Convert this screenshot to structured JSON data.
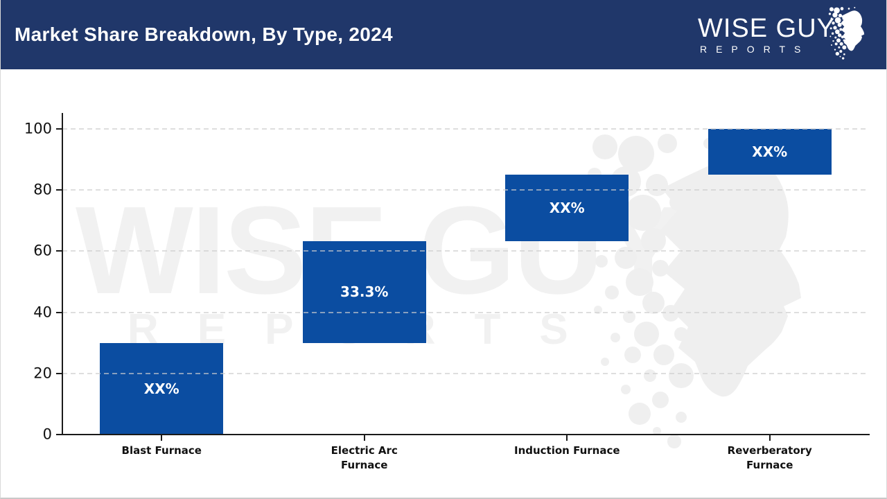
{
  "header": {
    "title": "Market Share Breakdown, By Type, 2024",
    "logo": {
      "line1": "WISE GUY",
      "line2": "REPORTS"
    }
  },
  "watermark": {
    "line1": "WISE GUY",
    "line2": "REPORTS"
  },
  "colors": {
    "header_bg": "#20376a",
    "bar": "#0b4da1",
    "bar_label": "#ffffff",
    "axis": "#1a1a1a",
    "gridline": "#dedede",
    "watermark": "#f1f1f1"
  },
  "chart_data": {
    "type": "bar",
    "subtype": "floating-segment-percentage",
    "title": "Market Share Breakdown, By Type, 2024",
    "categories": [
      "Blast Furnace",
      "Electric Arc Furnace",
      "Induction Furnace",
      "Reverberatory Furnace"
    ],
    "category_label_lines": [
      [
        "Blast Furnace"
      ],
      [
        "Electric Arc",
        "Furnace"
      ],
      [
        "Induction Furnace"
      ],
      [
        "Reverberatory",
        "Furnace"
      ]
    ],
    "segments": [
      {
        "category": "Blast Furnace",
        "start": 0,
        "end": 30,
        "span": 30,
        "label": "XX%"
      },
      {
        "category": "Electric Arc Furnace",
        "start": 30,
        "end": 63.3,
        "span": 33.3,
        "label": "33.3%"
      },
      {
        "category": "Induction Furnace",
        "start": 63.3,
        "end": 85,
        "span": 21.7,
        "label": "XX%"
      },
      {
        "category": "Reverberatory Furnace",
        "start": 85,
        "end": 100,
        "span": 15,
        "label": "XX%"
      }
    ],
    "yticks": [
      0,
      20,
      40,
      60,
      80,
      100
    ],
    "ylim": [
      0,
      105
    ],
    "xlabel": "",
    "ylabel": "",
    "grid": "horizontal-dashed",
    "legend": null,
    "bar_color": "#0b4da1",
    "bar_label_color": "#ffffff"
  }
}
